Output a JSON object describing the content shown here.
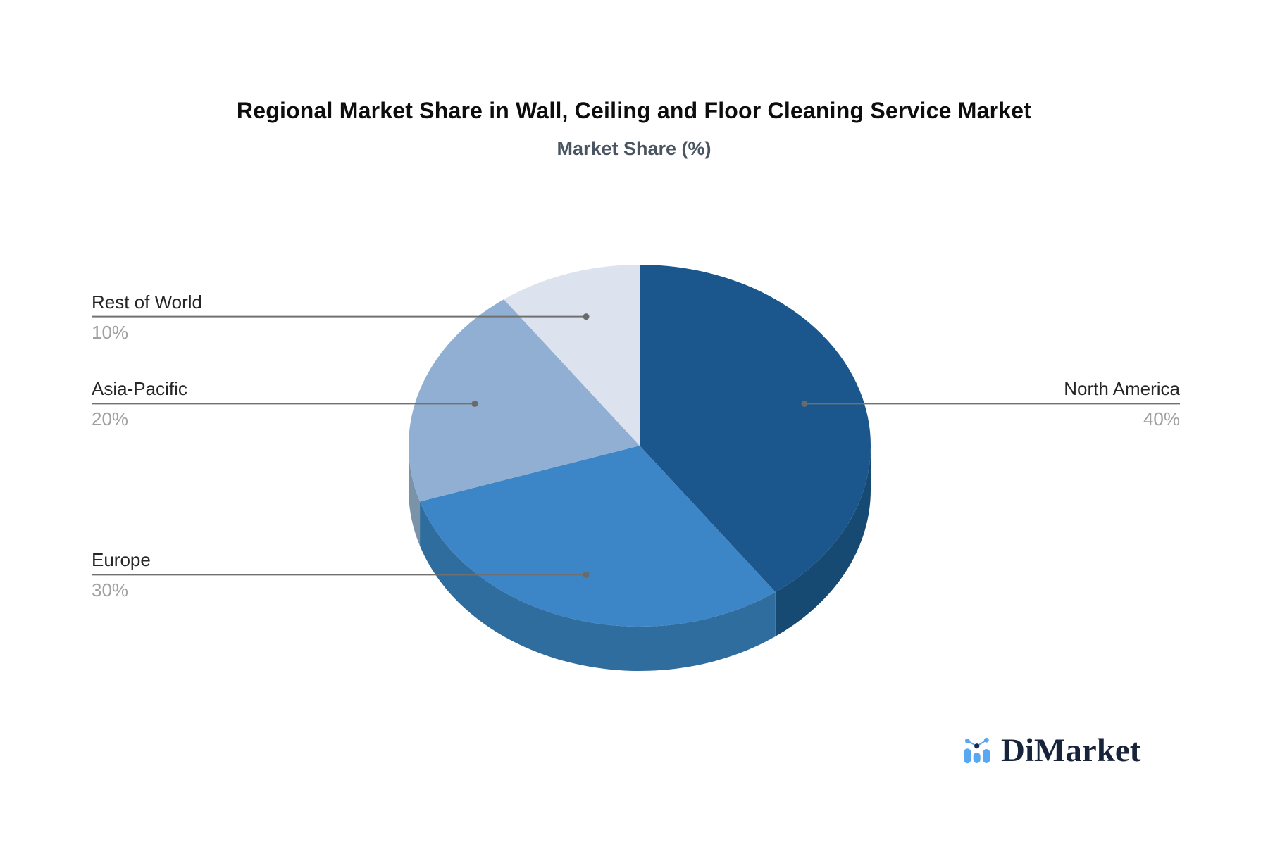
{
  "chart_data": {
    "type": "pie",
    "style": "3d",
    "title": "Regional Market Share in Wall, Ceiling and Floor Cleaning Service Market",
    "subtitle": "Market Share (%)",
    "unit": "%",
    "order": "clockwise-from-top",
    "legend_position": "callout-labels",
    "segments": [
      {
        "label": "North America",
        "value": 40,
        "display": "40%",
        "color": "#1b568c",
        "side_color": "#164a73"
      },
      {
        "label": "Europe",
        "value": 30,
        "display": "30%",
        "color": "#3c86c7",
        "side_color": "#2f6d9e"
      },
      {
        "label": "Asia-Pacific",
        "value": 20,
        "display": "20%",
        "color": "#91afd3",
        "side_color": "#7b93a9"
      },
      {
        "label": "Rest of World",
        "value": 10,
        "display": "10%",
        "color": "#dde3ee",
        "side_color": "#b9c4d4"
      }
    ]
  },
  "branding": {
    "logo_text": "DiMarket",
    "icon": "bar-chart-trend-icon"
  },
  "theme": {
    "background": "#ffffff",
    "title_color": "#0d0d0d",
    "subtitle_color": "#4a5561",
    "label_color": "#262626",
    "value_color": "#a0a0a0",
    "leader_color": "#707070",
    "dot_color": "#6a6a6a",
    "logo_text_color": "#17233a",
    "logo_blue": "#58a8f1",
    "logo_navy": "#1b2a4a"
  }
}
